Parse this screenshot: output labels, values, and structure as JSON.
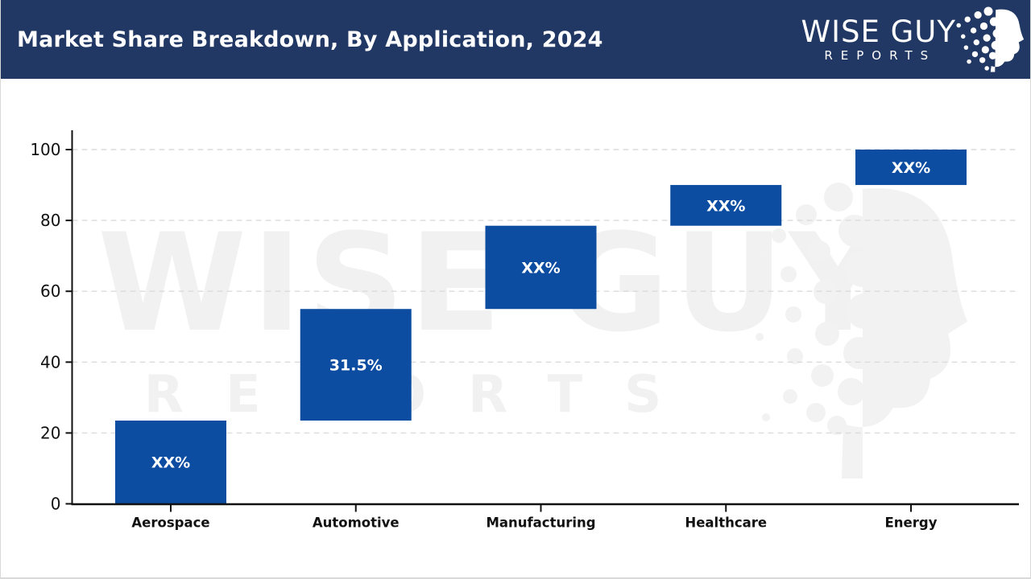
{
  "header": {
    "title": "Market Share Breakdown, By Application, 2024",
    "background_color": "#213764",
    "logo": {
      "line1": "WISE GUY",
      "line2": "REPORTS",
      "icon": "dotted-face-profile-icon"
    }
  },
  "watermark": {
    "line1": "WISE GUY",
    "line2": "REPORTS",
    "icon": "dotted-face-profile-icon",
    "color": "#f1f1f1"
  },
  "chart_data": {
    "type": "bar",
    "subtype": "waterfall",
    "title": "Market Share Breakdown, By Application, 2024",
    "xlabel": "",
    "ylabel": "",
    "categories": [
      "Aerospace",
      "Automotive",
      "Manufacturing",
      "Healthcare",
      "Energy"
    ],
    "segments": [
      {
        "category": "Aerospace",
        "start": 0,
        "end": 23.5,
        "label": "XX%"
      },
      {
        "category": "Automotive",
        "start": 23.5,
        "end": 55,
        "label": "31.5%"
      },
      {
        "category": "Manufacturing",
        "start": 55,
        "end": 78.5,
        "label": "XX%"
      },
      {
        "category": "Healthcare",
        "start": 78.5,
        "end": 90,
        "label": "XX%"
      },
      {
        "category": "Energy",
        "start": 90,
        "end": 100,
        "label": "XX%"
      }
    ],
    "yticks": [
      0,
      20,
      40,
      60,
      80,
      100
    ],
    "ylim": [
      0,
      105
    ],
    "grid": "horizontal-dashed",
    "legend": "none",
    "bar_color": "#0c4da2",
    "bar_label_color": "#ffffff",
    "axis_color": "#111111",
    "grid_color": "#dcdcdc"
  }
}
